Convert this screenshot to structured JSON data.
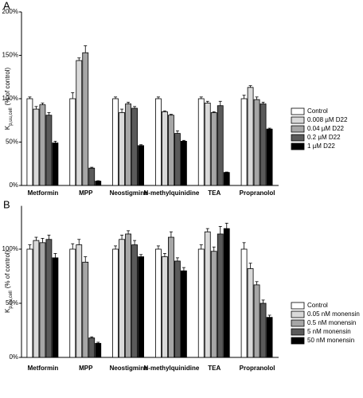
{
  "chart_data": [
    {
      "type": "bar",
      "panel": "A",
      "ylabel": {
        "main": "K",
        "sub": "p,uu,cell",
        "rest": "(% of control)"
      },
      "categories": [
        "Metformin",
        "MPP",
        "Neostigmine",
        "N-methylquinidine",
        "TEA",
        "Propranolol"
      ],
      "series": [
        {
          "name": "Control",
          "color": "#ffffff",
          "values": [
            100,
            100,
            100,
            100,
            100,
            100
          ],
          "errors": [
            2,
            7,
            2,
            2,
            2,
            4
          ]
        },
        {
          "name": "0.008 µM D22",
          "color": "#d9d9d9",
          "values": [
            88,
            144,
            84,
            85,
            95,
            113
          ],
          "errors": [
            3,
            3,
            4,
            1,
            2,
            2
          ]
        },
        {
          "name": "0.04 µM D22",
          "color": "#a6a6a6",
          "values": [
            93,
            153,
            94,
            81,
            84,
            99
          ],
          "errors": [
            2,
            8,
            2,
            1,
            1,
            3
          ]
        },
        {
          "name": "0.2 µM D22",
          "color": "#5a5a5a",
          "values": [
            81,
            20,
            89,
            60,
            92,
            94
          ],
          "errors": [
            3,
            1,
            2,
            3,
            5,
            2
          ]
        },
        {
          "name": "1 µM D22",
          "color": "#000000",
          "values": [
            49,
            5,
            46,
            51,
            15,
            65
          ],
          "errors": [
            2,
            0.5,
            1,
            1,
            0.5,
            1
          ]
        }
      ],
      "ylim": [
        0,
        200
      ],
      "yticks": [
        {
          "value": 0,
          "label": "0%"
        },
        {
          "value": 50,
          "label": "50%"
        },
        {
          "value": 100,
          "label": "100%"
        },
        {
          "value": 150,
          "label": "150%"
        },
        {
          "value": 200,
          "label": "200%"
        }
      ],
      "legend": "right"
    },
    {
      "type": "bar",
      "panel": "B",
      "ylabel": {
        "main": "K",
        "sub": "p,uu,cell",
        "rest": "(% of control)"
      },
      "categories": [
        "Metformin",
        "MPP",
        "Neostigmine",
        "N-methylquinidine",
        "TEA",
        "Propranolol"
      ],
      "series": [
        {
          "name": "Control",
          "color": "#ffffff",
          "values": [
            100,
            100,
            100,
            100,
            100,
            100
          ],
          "errors": [
            4,
            5,
            3,
            3,
            4,
            6
          ]
        },
        {
          "name": "0.05 nM monensin",
          "color": "#d9d9d9",
          "values": [
            108,
            104,
            109,
            93,
            116,
            82
          ],
          "errors": [
            3,
            5,
            4,
            3,
            3,
            5
          ]
        },
        {
          "name": "0.5 nM monensin",
          "color": "#a6a6a6",
          "values": [
            106,
            88,
            114,
            111,
            98,
            67
          ],
          "errors": [
            4,
            5,
            3,
            5,
            4,
            3
          ]
        },
        {
          "name": "5 nM monensin",
          "color": "#5a5a5a",
          "values": [
            109,
            18,
            104,
            89,
            114,
            50
          ],
          "errors": [
            4,
            1,
            4,
            3,
            7,
            3
          ]
        },
        {
          "name": "50 nM monensin",
          "color": "#000000",
          "values": [
            92,
            13,
            93,
            80,
            119,
            37
          ],
          "errors": [
            4,
            1,
            2,
            3,
            5,
            2
          ]
        }
      ],
      "ylim": [
        0,
        140
      ],
      "yticks": [
        {
          "value": 0,
          "label": "0%"
        },
        {
          "value": 50,
          "label": "50%"
        },
        {
          "value": 100,
          "label": "100%"
        }
      ],
      "legend": "right"
    }
  ]
}
